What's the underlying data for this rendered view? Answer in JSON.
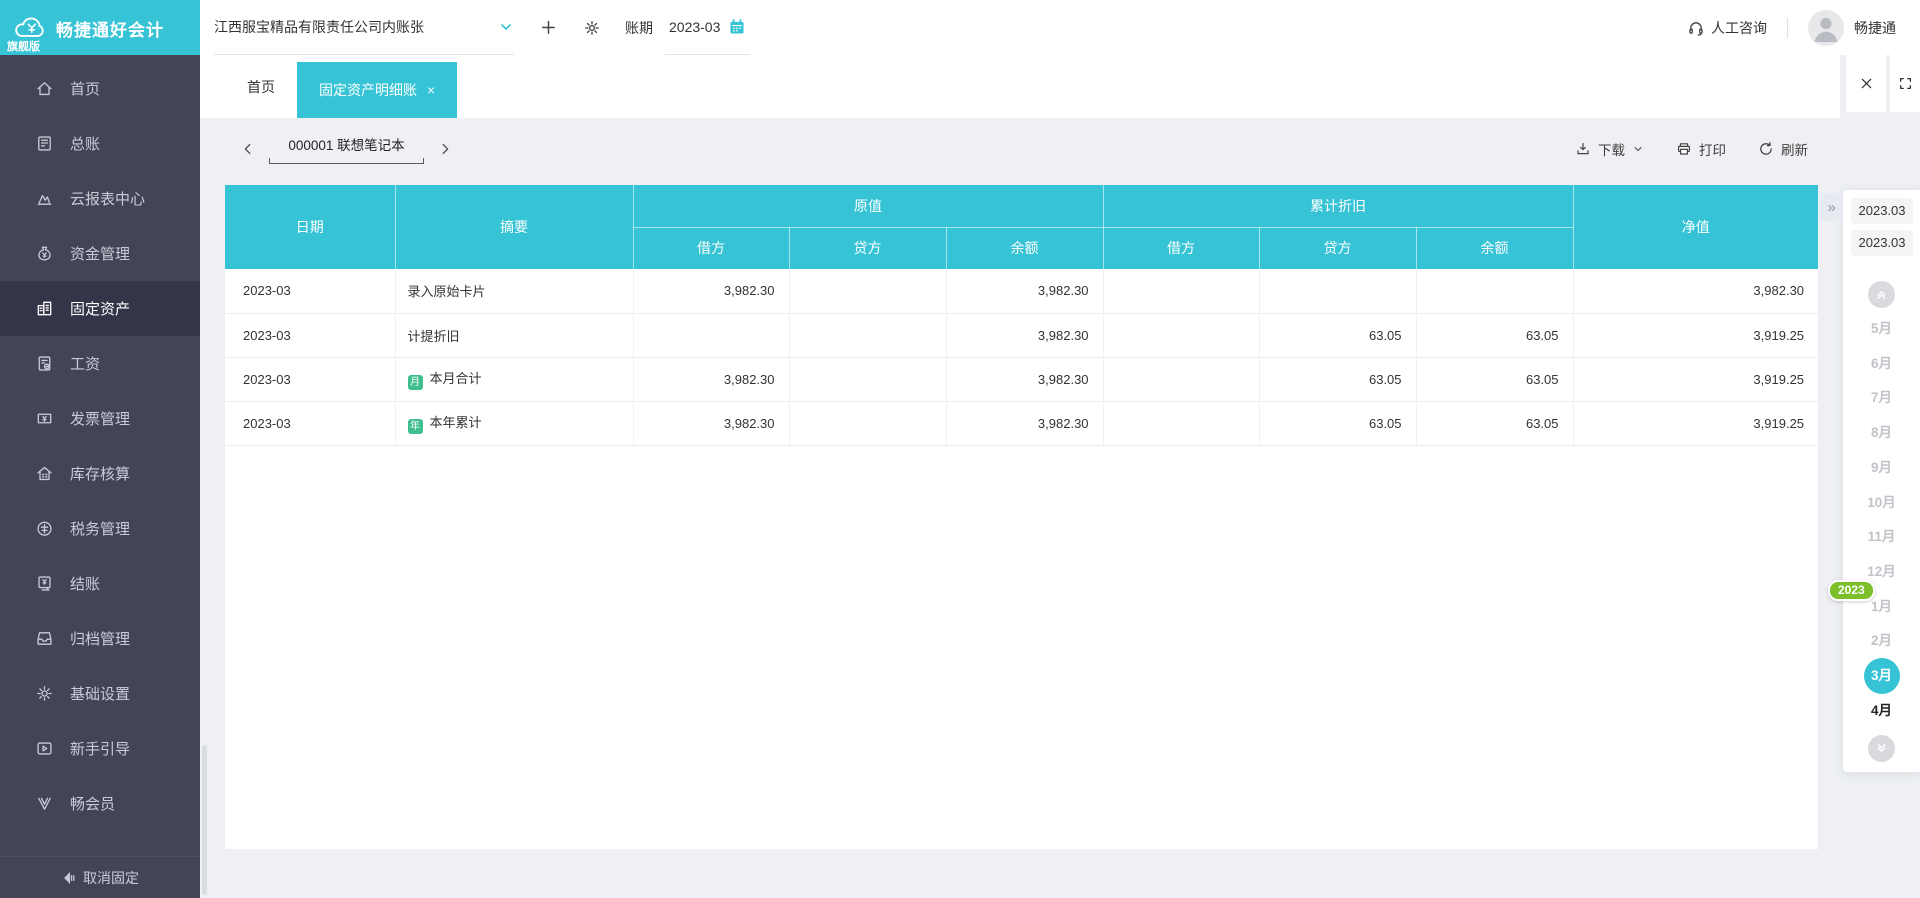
{
  "brand": {
    "title": "畅捷通好会计",
    "edition": "旗舰版"
  },
  "topbar": {
    "company": "江西服宝精品有限责任公司内账张",
    "period_label": "账期",
    "period_value": "2023-03",
    "support": "人工咨询",
    "user": "畅捷通"
  },
  "tabs": [
    {
      "label": "首页",
      "active": false,
      "closable": false
    },
    {
      "label": "固定资产明细账",
      "active": true,
      "closable": true
    }
  ],
  "sidebar": {
    "items": [
      {
        "label": "首页",
        "icon": "home-icon",
        "active": false
      },
      {
        "label": "总账",
        "icon": "ledger-icon",
        "active": false
      },
      {
        "label": "云报表中心",
        "icon": "report-icon",
        "active": false
      },
      {
        "label": "资金管理",
        "icon": "funds-icon",
        "active": false
      },
      {
        "label": "固定资产",
        "icon": "asset-icon",
        "active": true
      },
      {
        "label": "工资",
        "icon": "salary-icon",
        "active": false
      },
      {
        "label": "发票管理",
        "icon": "invoice-icon",
        "active": false
      },
      {
        "label": "库存核算",
        "icon": "inventory-icon",
        "active": false
      },
      {
        "label": "税务管理",
        "icon": "tax-icon",
        "active": false
      },
      {
        "label": "结账",
        "icon": "closing-icon",
        "active": false
      },
      {
        "label": "归档管理",
        "icon": "archive-icon",
        "active": false
      },
      {
        "label": "基础设置",
        "icon": "settings-icon",
        "active": false
      },
      {
        "label": "新手引导",
        "icon": "guide-icon",
        "active": false
      },
      {
        "label": "畅会员",
        "icon": "member-icon",
        "active": false
      }
    ],
    "pin_label": "取消固定"
  },
  "content": {
    "asset_nav": {
      "current": "000001  联想笔记本"
    },
    "toolbar": {
      "download": "下载",
      "print": "打印",
      "refresh": "刷新"
    }
  },
  "table": {
    "columns": {
      "date": "日期",
      "summary": "摘要",
      "orig_group": "原值",
      "dep_group": "累计折旧",
      "debit": "借方",
      "credit": "贷方",
      "balance": "余额",
      "net": "净值"
    },
    "rows": [
      {
        "date": "2023-03",
        "summary": "录入原始卡片",
        "badge": "",
        "cells": [
          "3,982.30",
          "",
          "3,982.30",
          "",
          "",
          "",
          "3,982.30"
        ]
      },
      {
        "date": "2023-03",
        "summary": "计提折旧",
        "badge": "",
        "cells": [
          "",
          "",
          "3,982.30",
          "",
          "63.05",
          "63.05",
          "3,919.25"
        ]
      },
      {
        "date": "2023-03",
        "summary": "本月合计",
        "badge": "月",
        "cells": [
          "3,982.30",
          "",
          "3,982.30",
          "",
          "63.05",
          "63.05",
          "3,919.25"
        ]
      },
      {
        "date": "2023-03",
        "summary": "本年累计",
        "badge": "年",
        "cells": [
          "3,982.30",
          "",
          "3,982.30",
          "",
          "63.05",
          "63.05",
          "3,919.25"
        ]
      }
    ]
  },
  "period_panel": {
    "from": "2023.03",
    "to": "2023.03",
    "year_badge": "2023",
    "months": [
      {
        "label": "5月",
        "state": "disabled"
      },
      {
        "label": "6月",
        "state": "disabled"
      },
      {
        "label": "7月",
        "state": "disabled"
      },
      {
        "label": "8月",
        "state": "disabled"
      },
      {
        "label": "9月",
        "state": "disabled"
      },
      {
        "label": "10月",
        "state": "disabled"
      },
      {
        "label": "11月",
        "state": "disabled"
      },
      {
        "label": "12月",
        "state": "disabled"
      },
      {
        "label": "1月",
        "state": "disabled"
      },
      {
        "label": "2月",
        "state": "disabled"
      },
      {
        "label": "3月",
        "state": "active"
      },
      {
        "label": "4月",
        "state": "normal"
      }
    ]
  },
  "colors": {
    "teal": "#35c3d5",
    "sidebar_bg": "#434456",
    "sidebar_active": "#343548",
    "badge_green": "#7cbf2a",
    "icon_green": "#3fbf90"
  }
}
